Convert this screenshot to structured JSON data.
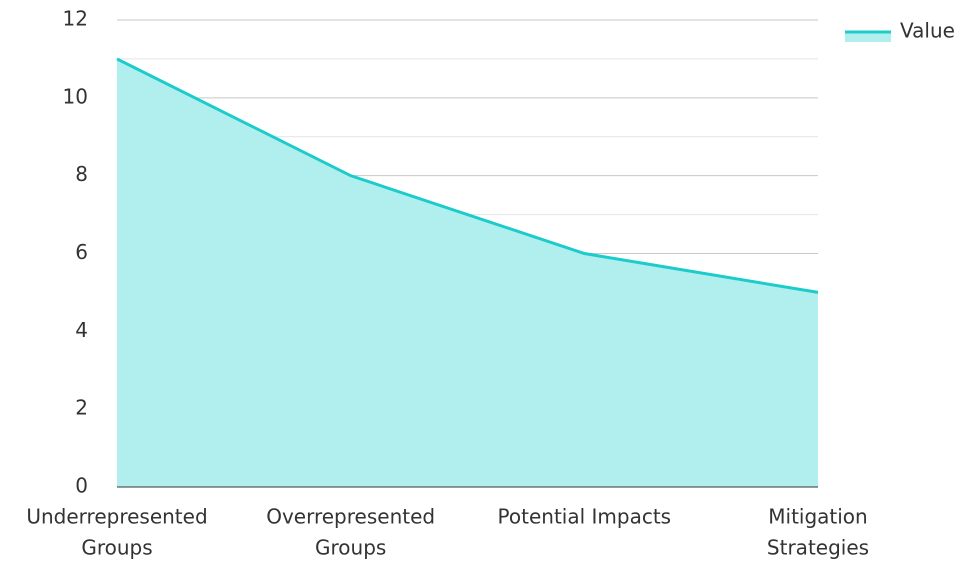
{
  "chart_data": {
    "type": "area",
    "categories": [
      [
        "Underrepresented",
        "Groups"
      ],
      [
        "Overrepresented",
        "Groups"
      ],
      [
        "Potential Impacts"
      ],
      [
        "Mitigation",
        "Strategies"
      ]
    ],
    "series": [
      {
        "name": "Value",
        "color": "#1ccccc",
        "fill": "#b0efed",
        "values": [
          11,
          8,
          6,
          5
        ]
      }
    ],
    "ylim": [
      0,
      12
    ],
    "yticks": [
      0,
      2,
      4,
      6,
      8,
      10,
      12
    ],
    "grid": true,
    "legend": "top-right"
  }
}
